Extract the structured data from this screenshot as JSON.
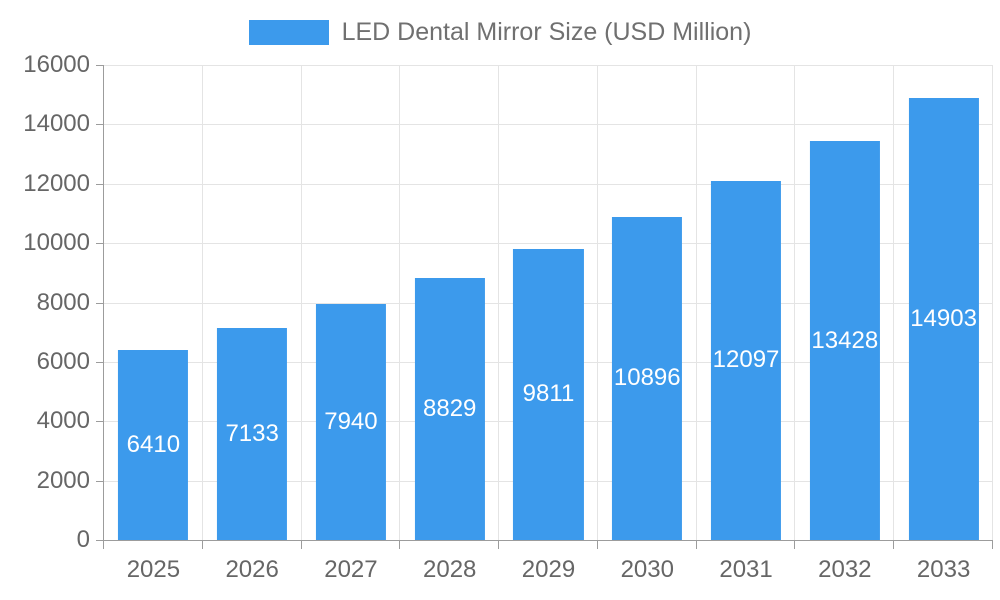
{
  "legend": {
    "label": "LED Dental Mirror Size (USD Million)"
  },
  "chart_data": {
    "type": "bar",
    "title": "LED Dental Mirror Size (USD Million)",
    "categories": [
      "2025",
      "2026",
      "2027",
      "2028",
      "2029",
      "2030",
      "2031",
      "2032",
      "2033"
    ],
    "values": [
      6410,
      7133,
      7940,
      8829,
      9811,
      10896,
      12097,
      13428,
      14903
    ],
    "xlabel": "",
    "ylabel": "",
    "ylim": [
      0,
      16000
    ],
    "ytick_step": 2000,
    "ytick_labels": [
      "0",
      "2000",
      "4000",
      "6000",
      "8000",
      "10000",
      "12000",
      "14000",
      "16000"
    ],
    "grid": true,
    "legend_position": "top-center",
    "value_labels": "inside-center",
    "colors": {
      "bar": "#3c9aec",
      "value_label": "#ffffff",
      "axis": "#9c9c9c",
      "gridline": "#e4e4e4",
      "tick_text": "#666666",
      "legend_text": "#707070",
      "background": "#ffffff"
    }
  }
}
